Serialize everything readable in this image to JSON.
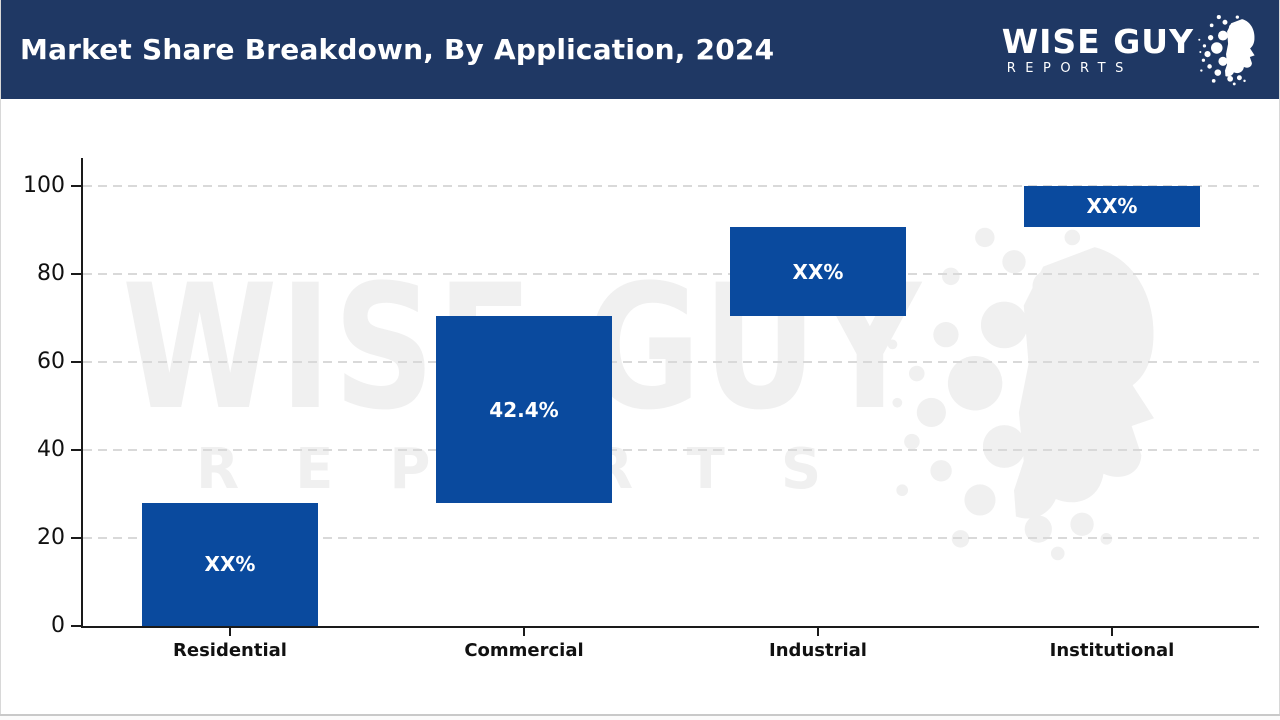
{
  "header": {
    "title": "Market Share Breakdown, By Application, 2024",
    "bg_color": "#1f3864",
    "logo": {
      "name": "WISE GUY",
      "tagline": "REPORTS"
    }
  },
  "watermark": {
    "line1": "WISE GUY",
    "line2": "REPORTS"
  },
  "chart_data": {
    "type": "bar",
    "subtype": "floating-waterfall",
    "title": "Market Share Breakdown, By Application, 2024",
    "categories": [
      "Residential",
      "Commercial",
      "Industrial",
      "Institutional"
    ],
    "segments": [
      {
        "category": "Residential",
        "start": 0,
        "end": 28.0,
        "value": 28.0,
        "label": "XX%"
      },
      {
        "category": "Commercial",
        "start": 28.0,
        "end": 70.4,
        "value": 42.4,
        "label": "42.4%"
      },
      {
        "category": "Industrial",
        "start": 70.4,
        "end": 90.7,
        "value": 20.3,
        "label": "XX%"
      },
      {
        "category": "Institutional",
        "start": 90.7,
        "end": 100.0,
        "value": 9.3,
        "label": "XX%"
      }
    ],
    "xlabel": "",
    "ylabel": "",
    "ylim": [
      0,
      100
    ],
    "yticks": [
      0,
      20,
      40,
      60,
      80,
      100
    ],
    "legend": "none",
    "grid": "horizontal-dashed",
    "bar_color": "#0a4a9e",
    "bar_label_color": "#ffffff",
    "axis_color": "#1a1a1a",
    "gridline_color": "#d9d9d9"
  }
}
